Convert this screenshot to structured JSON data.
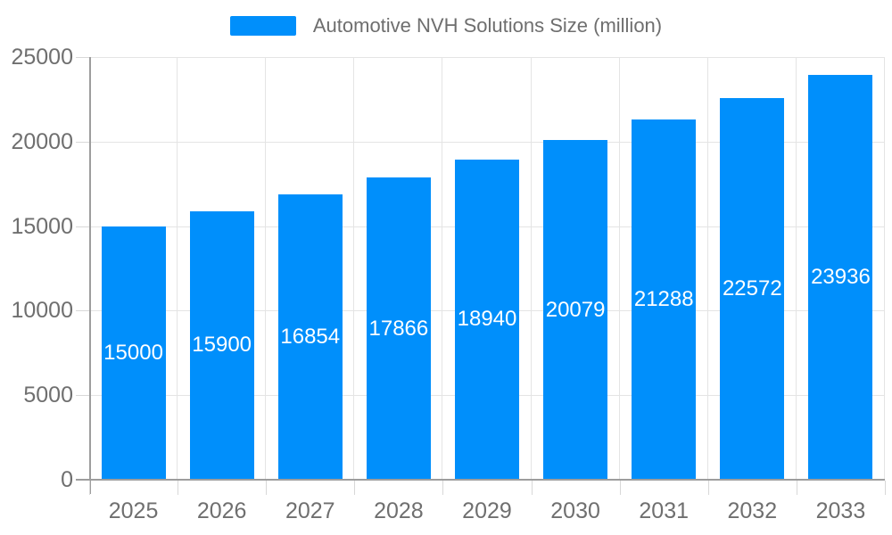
{
  "legend": {
    "label": "Automotive NVH Solutions Size (million)",
    "swatch_color": "#008FFB"
  },
  "chart_data": {
    "type": "bar",
    "title": "Automotive NVH Solutions Size (million)",
    "categories": [
      "2025",
      "2026",
      "2027",
      "2028",
      "2029",
      "2030",
      "2031",
      "2032",
      "2033"
    ],
    "series": [
      {
        "name": "Automotive NVH Solutions Size (million)",
        "values": [
          15000,
          15900,
          16854,
          17866,
          18940,
          20079,
          21288,
          22572,
          23936
        ]
      }
    ],
    "data_labels": [
      "15000",
      "15900",
      "16854",
      "17866",
      "18940",
      "20079",
      "21288",
      "22572",
      "23936"
    ],
    "xlabel": "",
    "ylabel": "",
    "ylim": [
      0,
      25000
    ],
    "y_ticks": [
      0,
      5000,
      10000,
      15000,
      20000,
      25000
    ],
    "y_tick_labels": [
      "0",
      "5000",
      "10000",
      "15000",
      "20000",
      "25000"
    ],
    "grid": true,
    "legend_position": "top",
    "colors": {
      "bar": "#008FFB",
      "data_label": "#ffffff",
      "axis_label": "#6f6f6f",
      "legend_text": "#6e6e6e",
      "gridline": "#e4e4e4",
      "axis_line": "#9d9d9d",
      "background": "#ffffff"
    }
  }
}
